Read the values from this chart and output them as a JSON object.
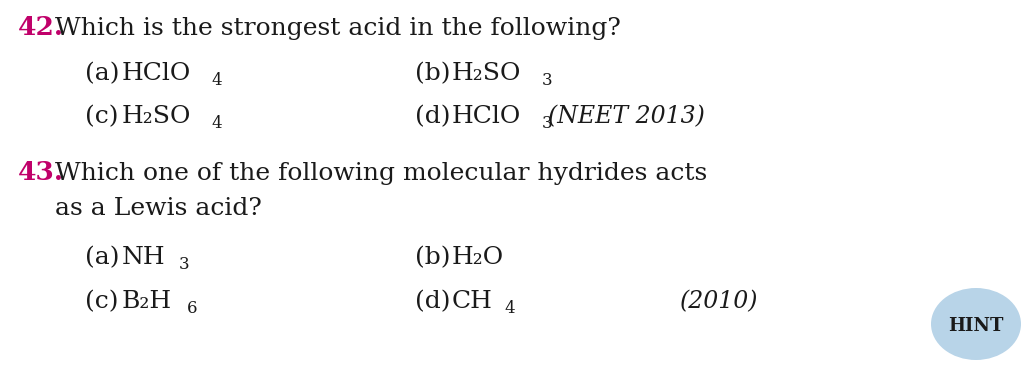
{
  "bg_color": "#ffffff",
  "q42_number": "42.",
  "q42_text": "Which is the strongest acid in the following?",
  "q43_number": "43.",
  "q43_text_line1": "Which one of the following molecular hydrides acts",
  "q43_text_line2": "as a Lewis acid?",
  "number_color": "#c0006a",
  "text_color": "#1a1a1a",
  "hint_text": "HINT",
  "hint_bg": "#b8d4e8",
  "hint_text_color": "#1a1a1a",
  "q42_a_main": "HClO",
  "q42_a_sub": "4",
  "q42_b_main": "H₂SO",
  "q42_b_sub": "3",
  "q42_c_main": "H₂SO",
  "q42_c_sub": "4",
  "q42_d_main": "HClO",
  "q42_d_sub": "3",
  "q42_d_extra": "(NEET 2013)",
  "q43_a_main": "NH",
  "q43_a_sub": "3",
  "q43_b_main": "H₂O",
  "q43_b_sub": "",
  "q43_c_main": "B₂H",
  "q43_c_sub": "6",
  "q43_d_main": "CH",
  "q43_d_sub": "4",
  "q43_d_extra": "(2010)",
  "main_fontsize": 18,
  "sub_fontsize": 12,
  "label_fontsize": 18,
  "num_fontsize": 19,
  "q_text_fontsize": 18
}
